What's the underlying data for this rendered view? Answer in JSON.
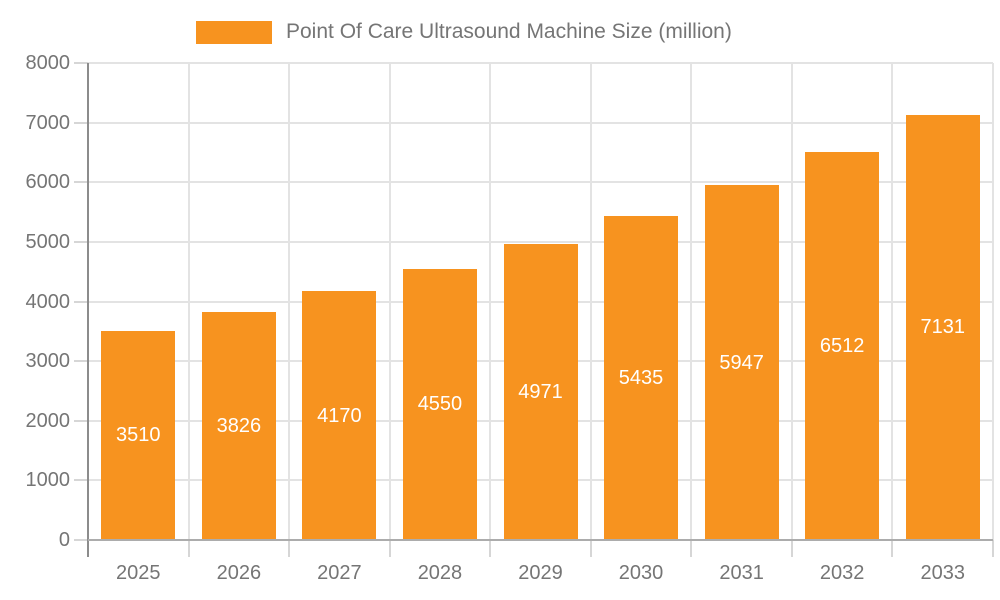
{
  "chart_data": {
    "type": "bar",
    "title": "Point Of Care Ultrasound Machine Size (million)",
    "categories": [
      "2025",
      "2026",
      "2027",
      "2028",
      "2029",
      "2030",
      "2031",
      "2032",
      "2033"
    ],
    "values": [
      3510,
      3826,
      4170,
      4550,
      4971,
      5435,
      5947,
      6512,
      7131
    ],
    "xlabel": "",
    "ylabel": "",
    "ylim": [
      0,
      8000
    ],
    "y_tick_step": 1000,
    "grid": true,
    "legend_position": "top",
    "value_labels": "inside-center",
    "colors": {
      "bar": "#F7931F",
      "value_label": "#FFFFFF",
      "axis_label": "#757575",
      "legend_label": "#757575",
      "grid_line": "#E3E3E3",
      "y_axis_line": "#8C8C8C",
      "x_axis_line": "#ACACAC",
      "tick": "#D6D6D6",
      "background": "#FFFFFF"
    }
  }
}
